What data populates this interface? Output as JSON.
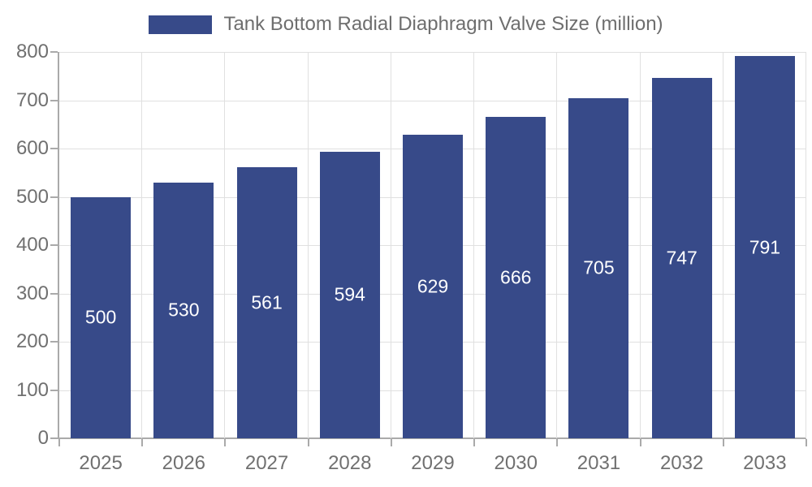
{
  "chart_data": {
    "type": "bar",
    "title": "Tank Bottom Radial Diaphragm Valve Size (million)",
    "categories": [
      "2025",
      "2026",
      "2027",
      "2028",
      "2029",
      "2030",
      "2031",
      "2032",
      "2033"
    ],
    "values": [
      500,
      530,
      561,
      594,
      629,
      666,
      705,
      747,
      791
    ],
    "xlabel": "",
    "ylabel": "",
    "ylim": [
      0,
      800
    ],
    "yticks": [
      0,
      100,
      200,
      300,
      400,
      500,
      600,
      700,
      800
    ],
    "grid": true,
    "legend_position": "top",
    "colors": {
      "bar": "#374A89",
      "grid": "#E0E0E0",
      "axis": "#AAAAAA",
      "tick_text": "#707070",
      "legend_text": "#6E6E6E",
      "value_label": "#FFFFFF",
      "background": "#FFFFFF"
    }
  }
}
